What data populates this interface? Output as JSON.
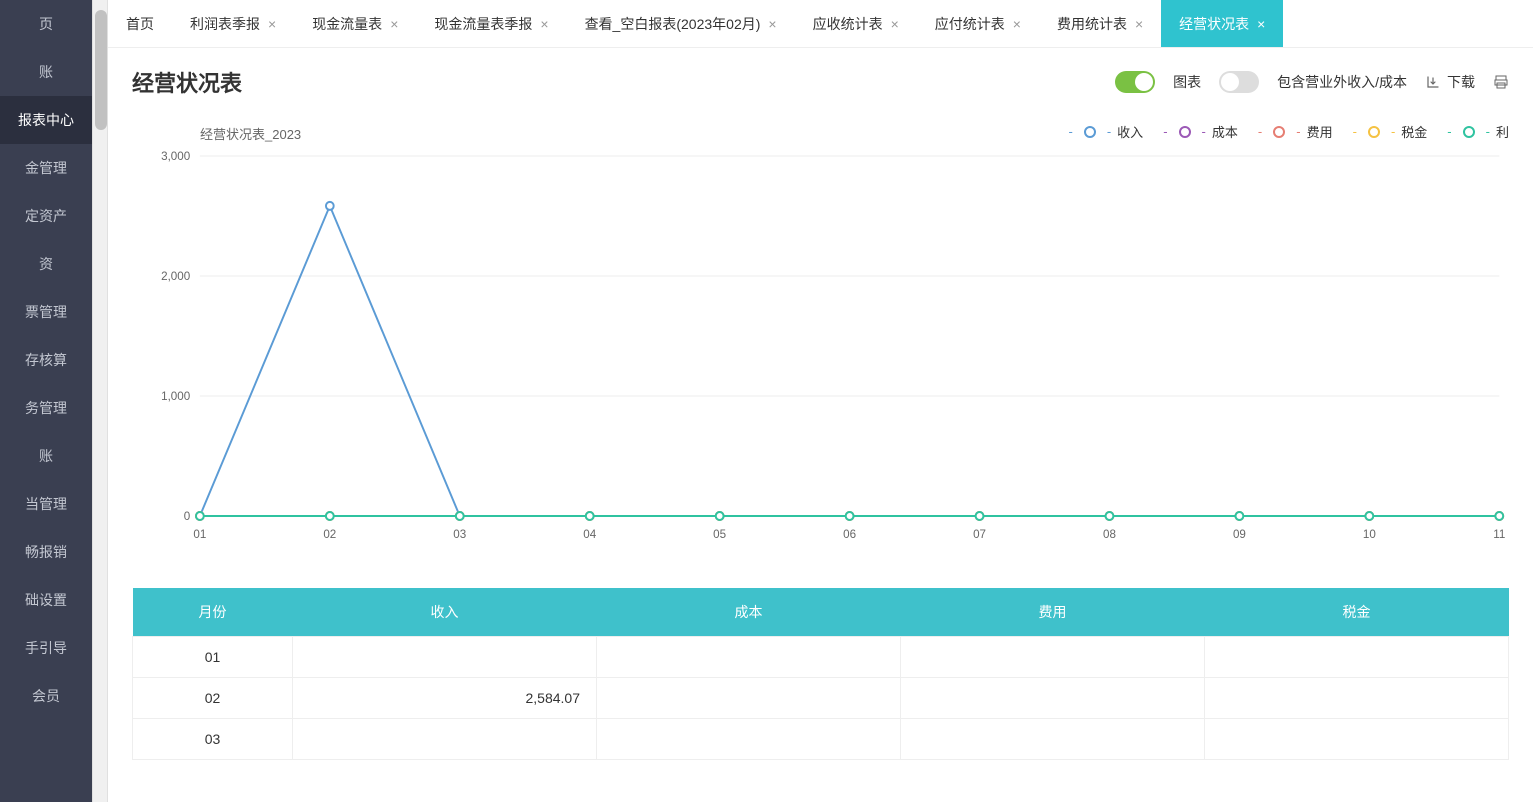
{
  "sidebar": {
    "items": [
      {
        "label": "页",
        "active": false
      },
      {
        "label": "账",
        "active": false
      },
      {
        "label": "报表中心",
        "active": true
      },
      {
        "label": "金管理",
        "active": false
      },
      {
        "label": "定资产",
        "active": false
      },
      {
        "label": "资",
        "active": false
      },
      {
        "label": "票管理",
        "active": false
      },
      {
        "label": "存核算",
        "active": false
      },
      {
        "label": "务管理",
        "active": false
      },
      {
        "label": "账",
        "active": false
      },
      {
        "label": "当管理",
        "active": false
      },
      {
        "label": "畅报销",
        "active": false
      },
      {
        "label": "础设置",
        "active": false
      },
      {
        "label": "手引导",
        "active": false
      },
      {
        "label": "会员",
        "active": false
      }
    ]
  },
  "tabs": [
    {
      "label": "首页",
      "closable": false,
      "active": false
    },
    {
      "label": "利润表季报",
      "closable": true,
      "active": false
    },
    {
      "label": "现金流量表",
      "closable": true,
      "active": false
    },
    {
      "label": "现金流量表季报",
      "closable": true,
      "active": false
    },
    {
      "label": "查看_空白报表(2023年02月)",
      "closable": true,
      "active": false
    },
    {
      "label": "应收统计表",
      "closable": true,
      "active": false
    },
    {
      "label": "应付统计表",
      "closable": true,
      "active": false
    },
    {
      "label": "费用统计表",
      "closable": true,
      "active": false
    },
    {
      "label": "经营状况表",
      "closable": true,
      "active": true
    }
  ],
  "page": {
    "title": "经营状况表",
    "toggle_chart_label": "图表",
    "toggle_chart_on": true,
    "toggle_extra_label": "包含营业外收入/成本",
    "toggle_extra_on": false,
    "download_label": "下载"
  },
  "chart": {
    "title": "经营状况表_2023",
    "type": "line",
    "x_categories": [
      "01",
      "02",
      "03",
      "04",
      "05",
      "06",
      "07",
      "08",
      "09",
      "10",
      "11"
    ],
    "y_ticks": [
      0,
      1000,
      2000,
      3000
    ],
    "y_tick_labels": [
      "0",
      "1,000",
      "2,000",
      "3,000"
    ],
    "ylim": [
      0,
      3000
    ],
    "grid_color": "#eeeeee",
    "axis_color": "#cccccc",
    "label_fontsize": 12,
    "label_color": "#666666",
    "background_color": "#ffffff",
    "marker_radius": 4,
    "line_width": 2,
    "series": [
      {
        "name": "收入",
        "color": "#5b9bd5",
        "values": [
          0,
          2584.07,
          0,
          0,
          0,
          0,
          0,
          0,
          0,
          0,
          0
        ]
      },
      {
        "name": "成本",
        "color": "#9b59b6",
        "values": [
          0,
          0,
          0,
          0,
          0,
          0,
          0,
          0,
          0,
          0,
          0
        ]
      },
      {
        "name": "费用",
        "color": "#e67e73",
        "values": [
          0,
          0,
          0,
          0,
          0,
          0,
          0,
          0,
          0,
          0,
          0
        ]
      },
      {
        "name": "税金",
        "color": "#f5c242",
        "values": [
          0,
          0,
          0,
          0,
          0,
          0,
          0,
          0,
          0,
          0,
          0
        ]
      },
      {
        "name": "利",
        "color": "#2fc3a0",
        "values": [
          0,
          0,
          0,
          0,
          0,
          0,
          0,
          0,
          0,
          0,
          0
        ]
      }
    ]
  },
  "table": {
    "header_bg": "#3fc1cb",
    "header_color": "#ffffff",
    "columns": [
      "月份",
      "收入",
      "成本",
      "费用",
      "税金"
    ],
    "rows": [
      {
        "month": "01",
        "income": "",
        "cost": "",
        "expense": "",
        "tax": ""
      },
      {
        "month": "02",
        "income": "2,584.07",
        "cost": "",
        "expense": "",
        "tax": ""
      },
      {
        "month": "03",
        "income": "",
        "cost": "",
        "expense": "",
        "tax": ""
      }
    ]
  }
}
